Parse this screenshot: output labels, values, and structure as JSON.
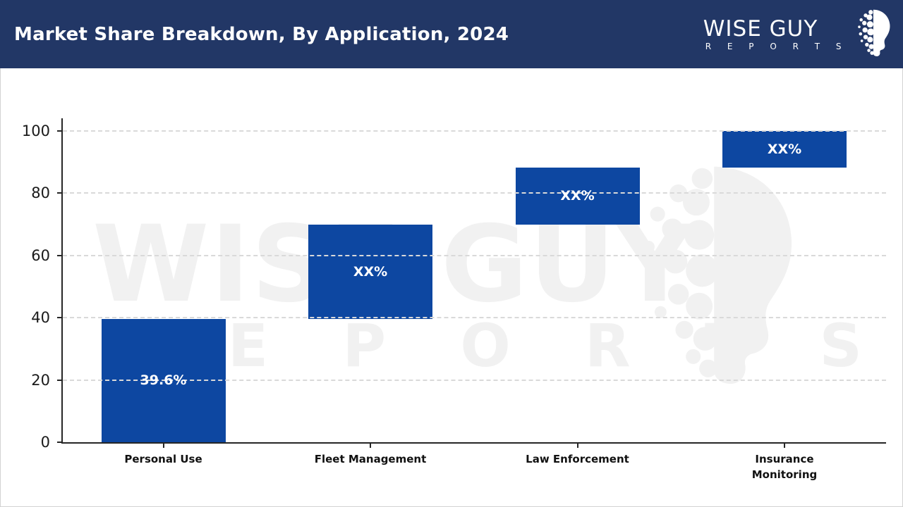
{
  "header": {
    "title": "Market Share Breakdown, By Application, 2024",
    "bg_color": "#223766",
    "logo": {
      "line1": "WISE GUY",
      "line2": "R E P O R T S"
    }
  },
  "watermark": {
    "line1": "WISE GUY",
    "line2": "R E P O R T S"
  },
  "chart_data": {
    "type": "bar",
    "variant": "waterfall",
    "title": "Market Share Breakdown, By Application, 2024",
    "categories": [
      "Personal Use",
      "Fleet Management",
      "Law Enforcement",
      "Insurance Monitoring"
    ],
    "segments": [
      {
        "category": "Personal Use",
        "start": 0,
        "end": 39.6,
        "label": "39.6%"
      },
      {
        "category": "Fleet Management",
        "start": 39.6,
        "end": 70,
        "label": "XX%"
      },
      {
        "category": "Law Enforcement",
        "start": 70,
        "end": 88.2,
        "label": "XX%"
      },
      {
        "category": "Insurance Monitoring",
        "start": 88.2,
        "end": 100,
        "label": "XX%"
      }
    ],
    "bar_color": "#0d47a1",
    "value_label_color": "#ffffff",
    "yticks": [
      0,
      20,
      40,
      60,
      80,
      100
    ],
    "ylim": [
      0,
      104
    ],
    "xlabel": "",
    "ylabel": "",
    "grid": {
      "axis": "y",
      "style": "dashed",
      "color": "#d9d9d9",
      "over_bars": true
    },
    "legend": "none"
  }
}
